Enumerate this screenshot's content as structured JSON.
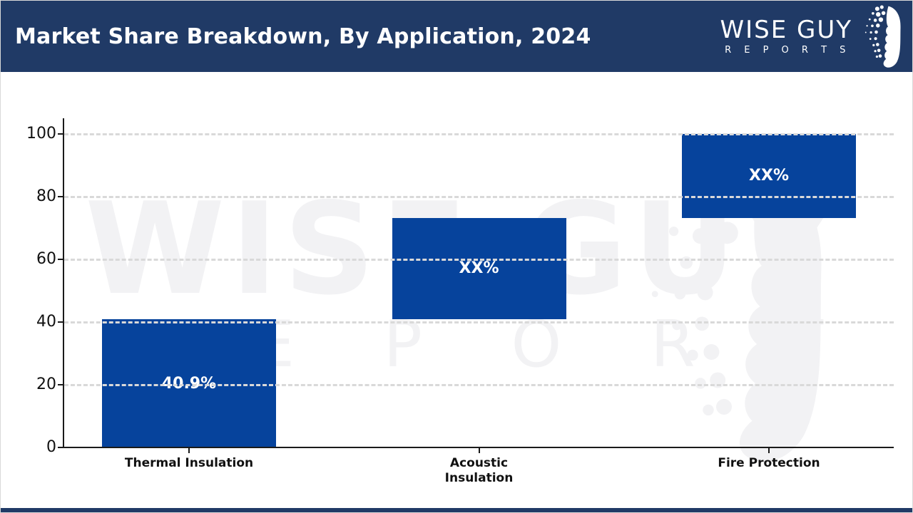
{
  "header": {
    "title": "Market Share Breakdown, By Application, 2024",
    "logo": {
      "line1": "WISE GUY",
      "line2": "R E P O R T S"
    }
  },
  "watermark": {
    "line1": "WISE GUY",
    "line2": "R E P O R T S"
  },
  "chart_data": {
    "type": "bar",
    "subtype": "stacked-waterfall",
    "title": "Market Share Breakdown, By Application, 2024",
    "categories": [
      "Thermal Insulation",
      "Acoustic\nInsulation",
      "Fire Protection"
    ],
    "segments": [
      {
        "category": "Thermal Insulation",
        "start": 0,
        "end": 40.9,
        "label": "40.9%"
      },
      {
        "category": "Acoustic Insulation",
        "start": 40.9,
        "end": 73.2,
        "label": "XX%"
      },
      {
        "category": "Fire Protection",
        "start": 73.2,
        "end": 100,
        "label": "XX%"
      }
    ],
    "ylim": [
      0,
      100
    ],
    "yticks": [
      0,
      20,
      40,
      60,
      80,
      100
    ],
    "xlabel": "",
    "ylabel": "",
    "grid": "horizontal-dashed",
    "legend": "none",
    "bar_color": "#06439c"
  },
  "colors": {
    "header_bg": "#203a66",
    "bar": "#06439c",
    "grid": "#d9d9d9",
    "axis": "#1a1a1a",
    "watermark": "#f2f2f4"
  }
}
